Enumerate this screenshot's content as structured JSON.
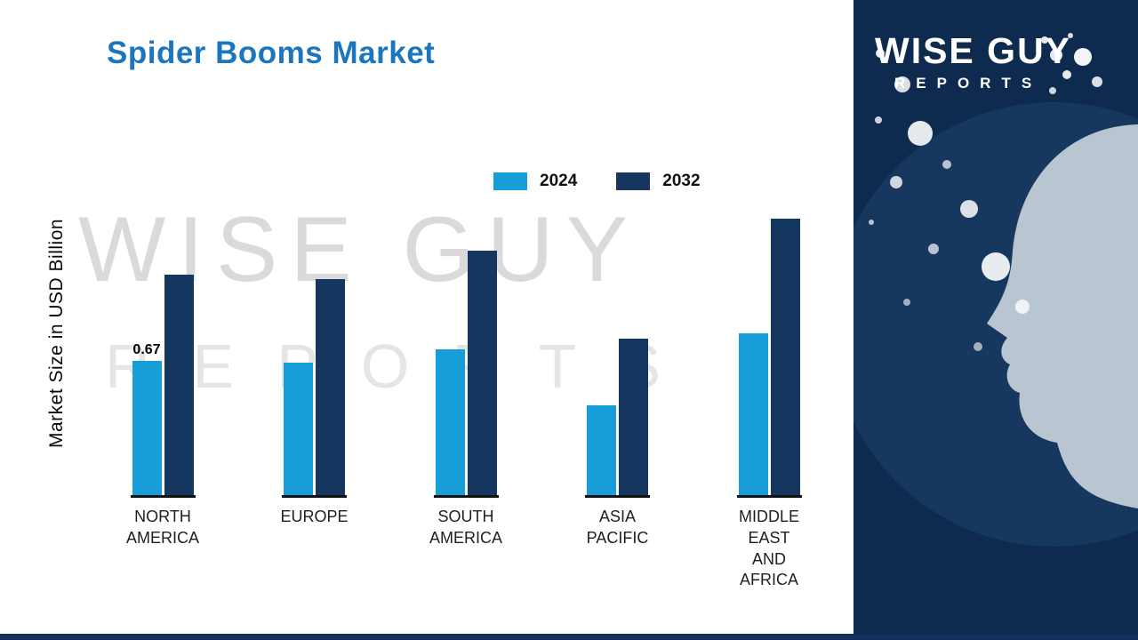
{
  "header": {
    "title": "Spider Booms Market"
  },
  "logo": {
    "name": "WISE GUY",
    "tagline": "REPORTS"
  },
  "watermark": {
    "line1": "WISE GUY",
    "line2": "REPORTS"
  },
  "colors": {
    "title_blue": "#1b76bd",
    "bar_2024": "#199dd9",
    "bar_2032": "#14365f",
    "panel_navy": "#0e2a4e",
    "watermark_gray": "#dadada"
  },
  "chart_data": {
    "type": "bar",
    "title": "Spider Booms Market",
    "xlabel": "",
    "ylabel": "Market Size in USD Billion",
    "categories": [
      "NORTH AMERICA",
      "EUROPE",
      "SOUTH AMERICA",
      "ASIA PACIFIC",
      "MIDDLE EAST AND AFRICA"
    ],
    "category_lines": [
      [
        "NORTH",
        "AMERICA"
      ],
      [
        "EUROPE"
      ],
      [
        "SOUTH",
        "AMERICA"
      ],
      [
        "ASIA",
        "PACIFIC"
      ],
      [
        "MIDDLE",
        "EAST",
        "AND",
        "AFRICA"
      ]
    ],
    "series": [
      {
        "name": "2024",
        "color": "#199dd9",
        "values": [
          0.67,
          0.66,
          0.73,
          0.45,
          0.81
        ]
      },
      {
        "name": "2032",
        "color": "#14365f",
        "values": [
          1.1,
          1.08,
          1.22,
          0.78,
          1.38
        ]
      }
    ],
    "ylim": [
      0,
      1.4
    ],
    "grid": false,
    "legend_position": "top",
    "value_labels": [
      {
        "series_index": 0,
        "category_index": 0,
        "text": "0.67"
      }
    ]
  }
}
